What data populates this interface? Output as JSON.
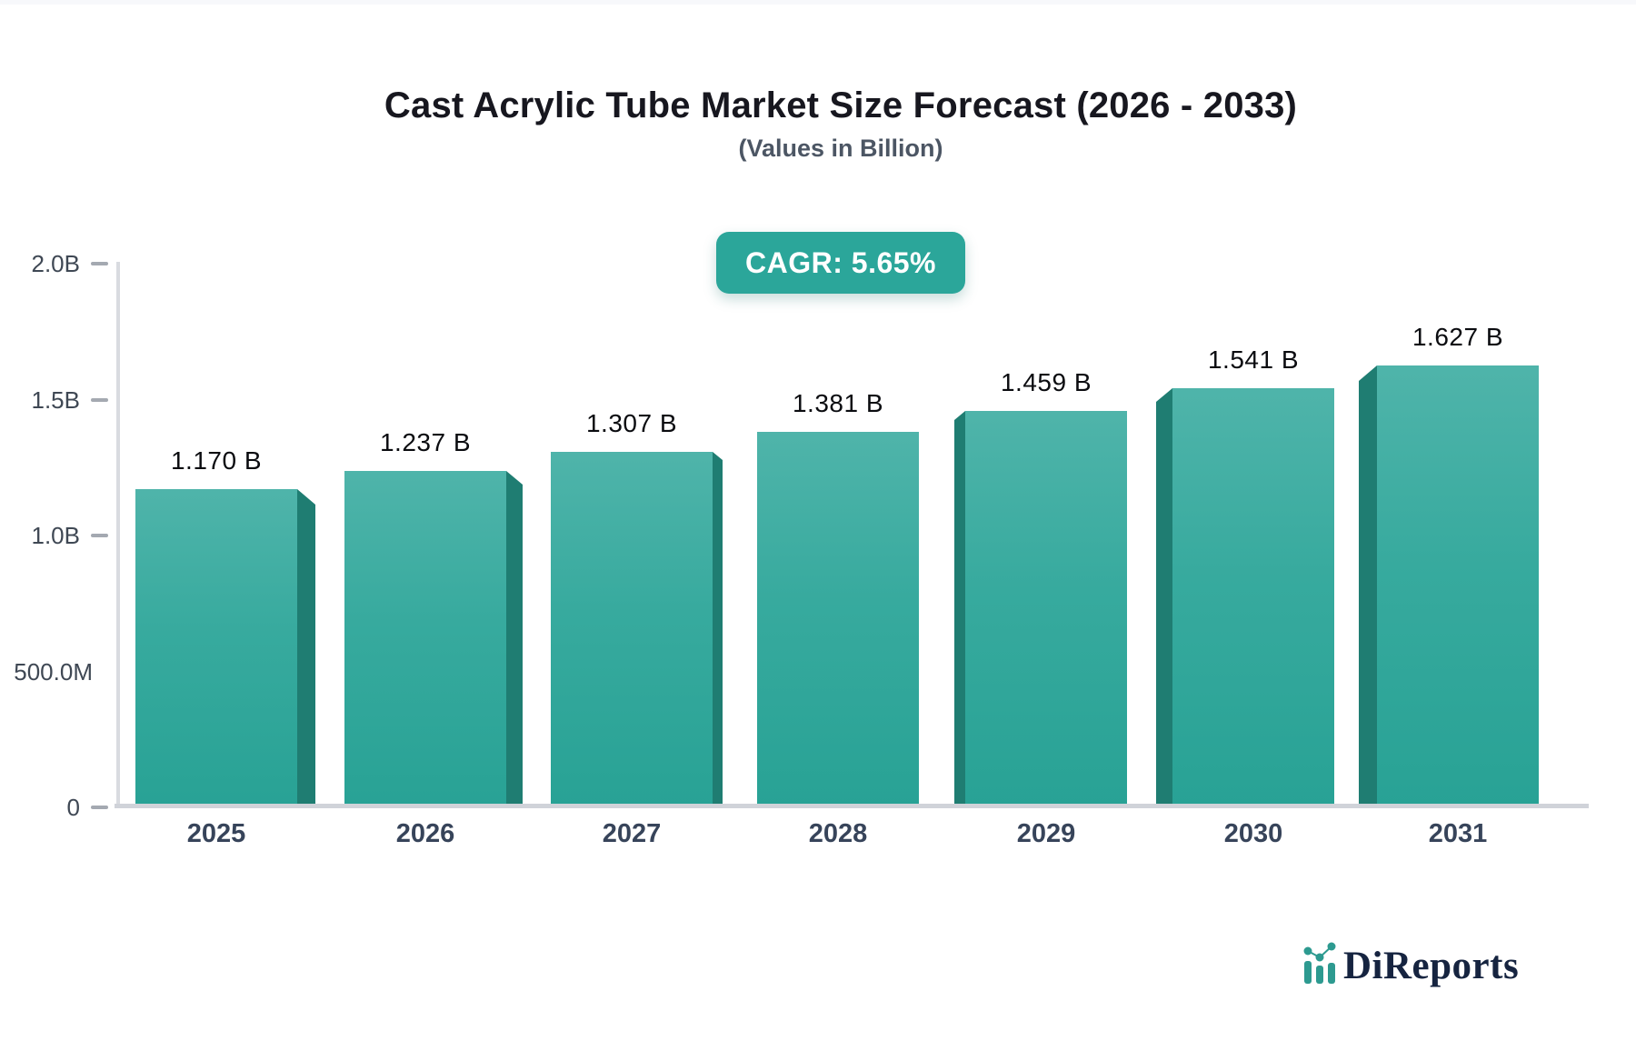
{
  "header": {
    "title": "Cast Acrylic Tube Market Size Forecast (2026 - 2033)",
    "subtitle": "(Values in Billion)",
    "cagr_label": "CAGR: 5.65%"
  },
  "chart_data": {
    "type": "bar",
    "title": "Cast Acrylic Tube Market Size Forecast (2026 - 2033)",
    "subtitle": "(Values in Billion)",
    "cagr": "5.65%",
    "categories": [
      "2025",
      "2026",
      "2027",
      "2028",
      "2029",
      "2030",
      "2031"
    ],
    "values": [
      1.17,
      1.237,
      1.307,
      1.381,
      1.459,
      1.541,
      1.627
    ],
    "value_labels": [
      "1.170 B",
      "1.237 B",
      "1.307 B",
      "1.381 B",
      "1.459 B",
      "1.541 B",
      "1.627 B"
    ],
    "unit": "B",
    "ylim": [
      0,
      2.0
    ],
    "yticks": [
      {
        "label": "2.0B",
        "value": 2.0,
        "tick": true
      },
      {
        "label": "1.5B",
        "value": 1.5,
        "tick": true
      },
      {
        "label": "1.0B",
        "value": 1.0,
        "tick": true
      },
      {
        "label": "500.0M",
        "value": 0.5,
        "tick": false
      },
      {
        "label": "0",
        "value": 0.0,
        "tick": true
      }
    ],
    "gridlines": false,
    "legend": false,
    "colors": {
      "bar_top": "#4fb4aa",
      "bar_bottom": "#28a295",
      "bar_side": "#1f7d72",
      "badge_background": "#2ba69a",
      "badge_text": "#ffffff",
      "axis": "#d9dbe0",
      "logo_accent": "#2d9a90",
      "logo_text": "#162440"
    }
  },
  "logo": {
    "text": "DiReports"
  }
}
